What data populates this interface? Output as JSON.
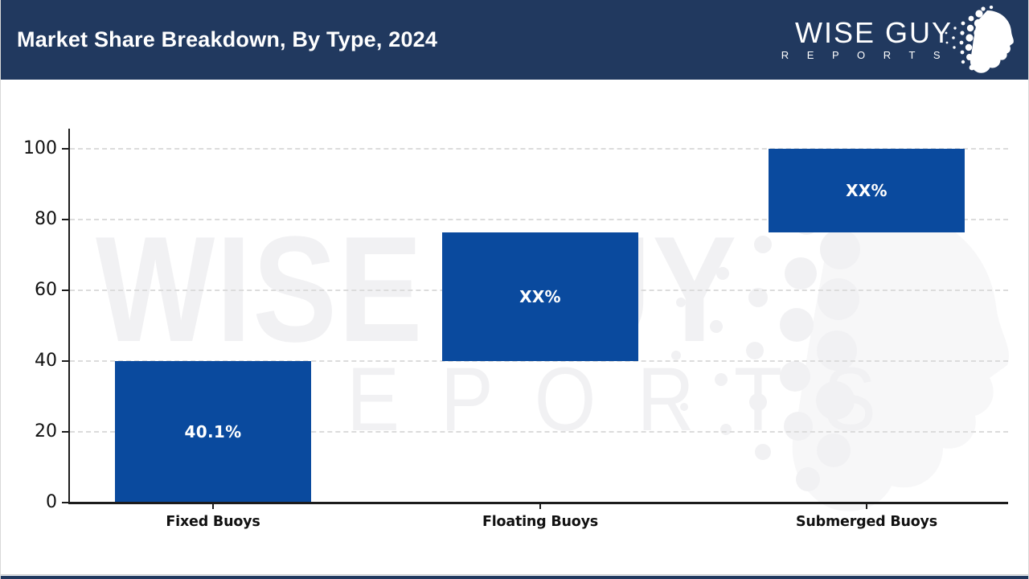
{
  "header": {
    "title": "Market Share Breakdown, By Type, 2024",
    "logo": {
      "line1": "WISE GUY",
      "line2": "R E P O R T S"
    }
  },
  "watermark": {
    "line1": "WISE GUY",
    "line2": "REPORTS"
  },
  "footer": {
    "strip_color": "#21395f"
  },
  "colors": {
    "header_navy": "#21395f",
    "bar_blue": "#0a4a9e",
    "grid": "#dcdcdc",
    "axis": "#1c1c1c",
    "bar_label": "#ffffff",
    "watermark": "#f1f1f3"
  },
  "chart_data": {
    "type": "bar",
    "subtype": "waterfall",
    "title": "Market Share Breakdown, By Type, 2024",
    "categories": [
      "Fixed Buoys",
      "Floating Buoys",
      "Submerged Buoys"
    ],
    "segments": [
      {
        "category": "Fixed Buoys",
        "start": 0,
        "end": 40.1,
        "label": "40.1%"
      },
      {
        "category": "Floating Buoys",
        "start": 40.1,
        "end": 76.3,
        "label": "XX%"
      },
      {
        "category": "Submerged Buoys",
        "start": 76.3,
        "end": 100,
        "label": "XX%"
      }
    ],
    "ylim": [
      0,
      100
    ],
    "yticks": [
      0,
      20,
      40,
      60,
      80,
      100
    ],
    "xlabel": "",
    "ylabel": "",
    "grid": "horizontal-dashed",
    "legend": "none",
    "bar_color": "#0a4a9e",
    "label_color": "#ffffff"
  }
}
